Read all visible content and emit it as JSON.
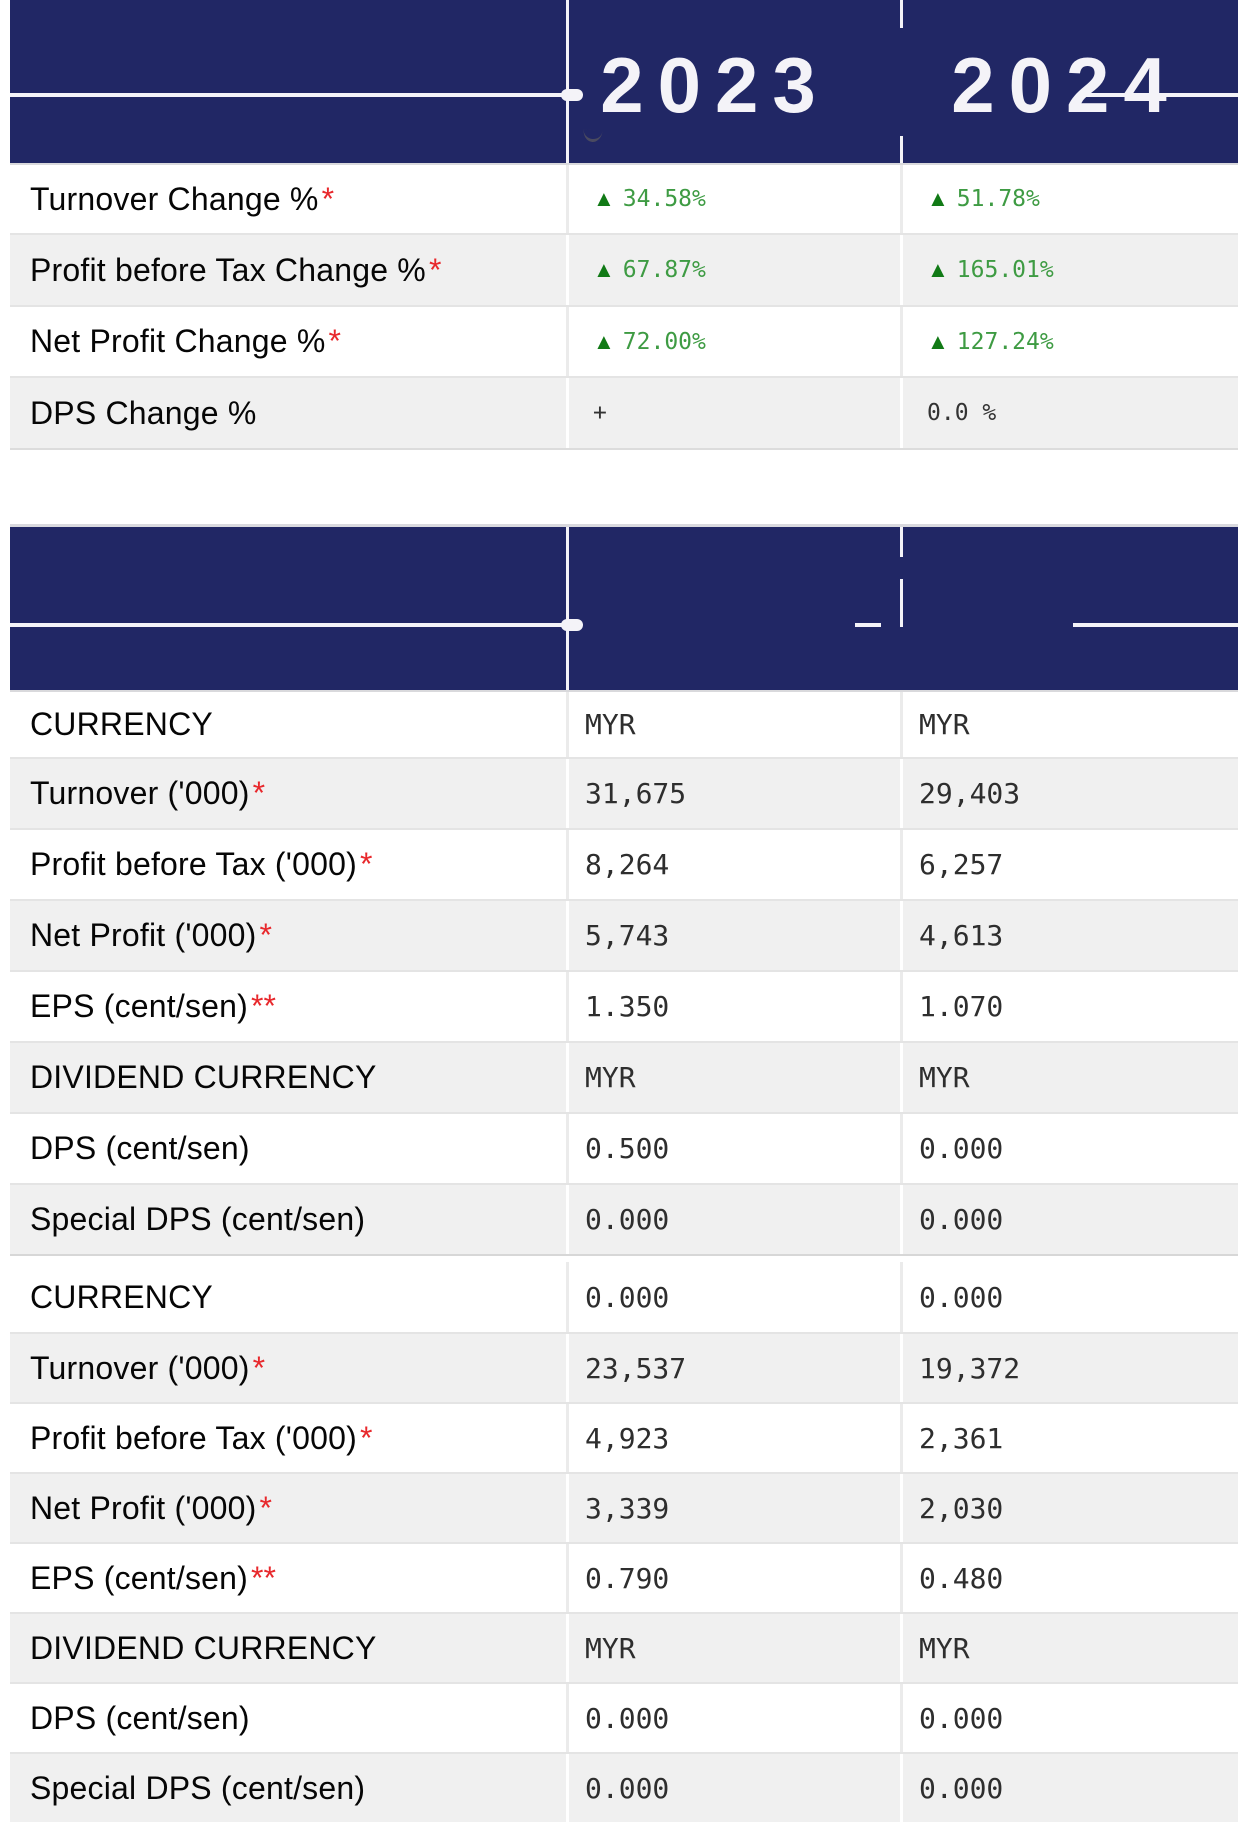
{
  "header": {
    "years": [
      "2023",
      "2024"
    ]
  },
  "icons": {
    "up_triangle": "▲"
  },
  "theme": {
    "navy": "#212765",
    "header_line": "#f4f3f8",
    "green_value": "#3e9b43",
    "green_triangle": "#117a16",
    "red_asterisk": "#e8282c",
    "row_gray": "#f0f0f0",
    "row_white": "#ffffff",
    "separator": "#e4e4e4"
  },
  "change_table": {
    "rows": [
      {
        "label": "Turnover Change %",
        "mark": "*",
        "values": [
          {
            "icon": "up-triangle-icon",
            "text": "34.58%",
            "style": "green"
          },
          {
            "icon": "up-triangle-icon",
            "text": "51.78%",
            "style": "green"
          }
        ]
      },
      {
        "label": "Profit before Tax Change %",
        "mark": "*",
        "values": [
          {
            "icon": "up-triangle-icon",
            "text": "67.87%",
            "style": "green"
          },
          {
            "icon": "up-triangle-icon",
            "text": "165.01%",
            "style": "green"
          }
        ]
      },
      {
        "label": "Net Profit Change %",
        "mark": "*",
        "values": [
          {
            "icon": "up-triangle-icon",
            "text": "72.00%",
            "style": "green"
          },
          {
            "icon": "up-triangle-icon",
            "text": "127.24%",
            "style": "green"
          }
        ]
      },
      {
        "label": "DPS Change %",
        "mark": "",
        "values": [
          {
            "icon": null,
            "text": "+",
            "style": "plain"
          },
          {
            "icon": null,
            "text": "0.0 %",
            "style": "plain"
          }
        ]
      }
    ]
  },
  "financial_table": {
    "blocks": [
      {
        "rows": [
          {
            "label": "CURRENCY",
            "mark": "",
            "values": [
              "MYR",
              "MYR"
            ]
          },
          {
            "label": "Turnover ('000)",
            "mark": "*",
            "values": [
              "31,675",
              "29,403"
            ]
          },
          {
            "label": "Profit before Tax ('000)",
            "mark": "*",
            "values": [
              "8,264",
              "6,257"
            ]
          },
          {
            "label": "Net Profit ('000)",
            "mark": "*",
            "values": [
              "5,743",
              "4,613"
            ]
          },
          {
            "label": "EPS (cent/sen)",
            "mark": "**",
            "values": [
              "1.350",
              "1.070"
            ]
          },
          {
            "label": "DIVIDEND CURRENCY",
            "mark": "",
            "values": [
              "MYR",
              "MYR"
            ]
          },
          {
            "label": "DPS (cent/sen)",
            "mark": "",
            "values": [
              "0.500",
              "0.000"
            ]
          },
          {
            "label": "Special DPS (cent/sen)",
            "mark": "",
            "values": [
              "0.000",
              "0.000"
            ]
          }
        ]
      },
      {
        "rows": [
          {
            "label": "CURRENCY",
            "mark": "",
            "values": [
              "0.000",
              "0.000"
            ]
          },
          {
            "label": "Turnover ('000)",
            "mark": "*",
            "values": [
              "23,537",
              "19,372"
            ]
          },
          {
            "label": "Profit before Tax ('000)",
            "mark": "*",
            "values": [
              "4,923",
              "2,361"
            ]
          },
          {
            "label": "Net Profit ('000)",
            "mark": "*",
            "values": [
              "3,339",
              "2,030"
            ]
          },
          {
            "label": "EPS (cent/sen)",
            "mark": "**",
            "values": [
              "0.790",
              "0.480"
            ]
          },
          {
            "label": "DIVIDEND CURRENCY",
            "mark": "",
            "values": [
              "MYR",
              "MYR"
            ]
          },
          {
            "label": "DPS (cent/sen)",
            "mark": "",
            "values": [
              "0.000",
              "0.000"
            ]
          },
          {
            "label": "Special DPS (cent/sen)",
            "mark": "",
            "values": [
              "0.000",
              "0.000"
            ]
          }
        ]
      }
    ]
  }
}
